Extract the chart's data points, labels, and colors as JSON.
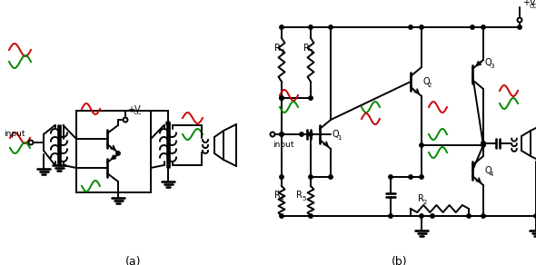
{
  "bg_color": "#ffffff",
  "lc": "#000000",
  "rc": "#cc0000",
  "gc": "#008800",
  "lw": 1.4,
  "label_a": "(a)",
  "label_b": "(b)",
  "vcc_label": "+V",
  "vcc_sub": "CC"
}
